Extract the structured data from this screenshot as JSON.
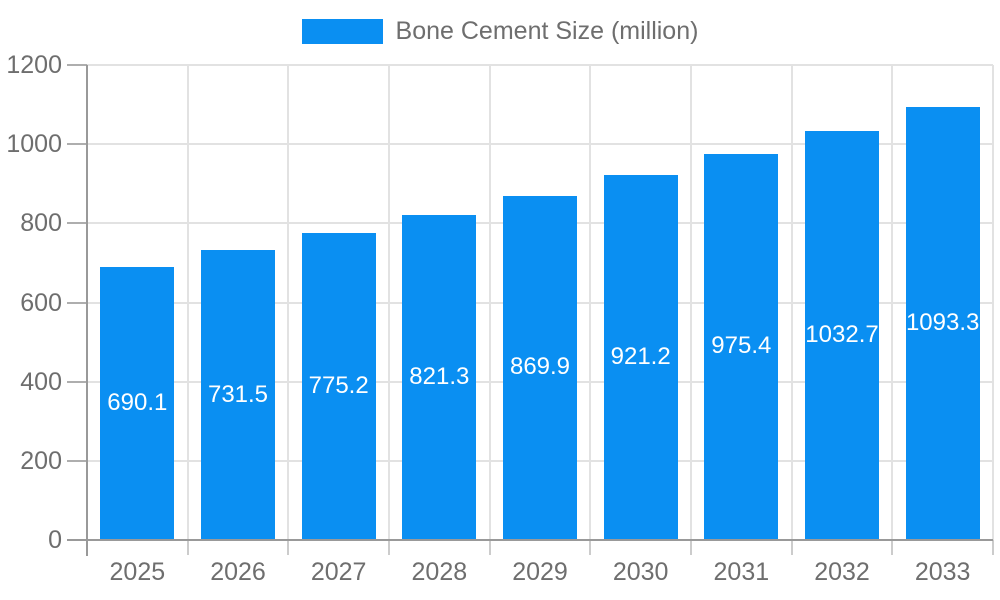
{
  "legend": {
    "label": "Bone Cement Size (million)"
  },
  "colors": {
    "bar": "#0a8ff2",
    "grid": "#e2e2e2",
    "axis": "#999999",
    "tick": "#aeaeae",
    "axis_label": "#6e6e6e",
    "value_label": "#ffffff",
    "background": "#ffffff"
  },
  "chart_data": {
    "type": "bar",
    "title": "Bone Cement Size (million)",
    "categories": [
      "2025",
      "2026",
      "2027",
      "2028",
      "2029",
      "2030",
      "2031",
      "2032",
      "2033"
    ],
    "values": [
      690.1,
      731.5,
      775.2,
      821.3,
      869.9,
      921.2,
      975.4,
      1032.7,
      1093.3
    ],
    "series_name": "Bone Cement Size (million)",
    "xlabel": "",
    "ylabel": "",
    "ylim": [
      0,
      1200
    ],
    "yticks": [
      0,
      200,
      400,
      600,
      800,
      1000,
      1200
    ],
    "grid": true,
    "legend_position": "top-center",
    "value_labels": "inside-center"
  }
}
